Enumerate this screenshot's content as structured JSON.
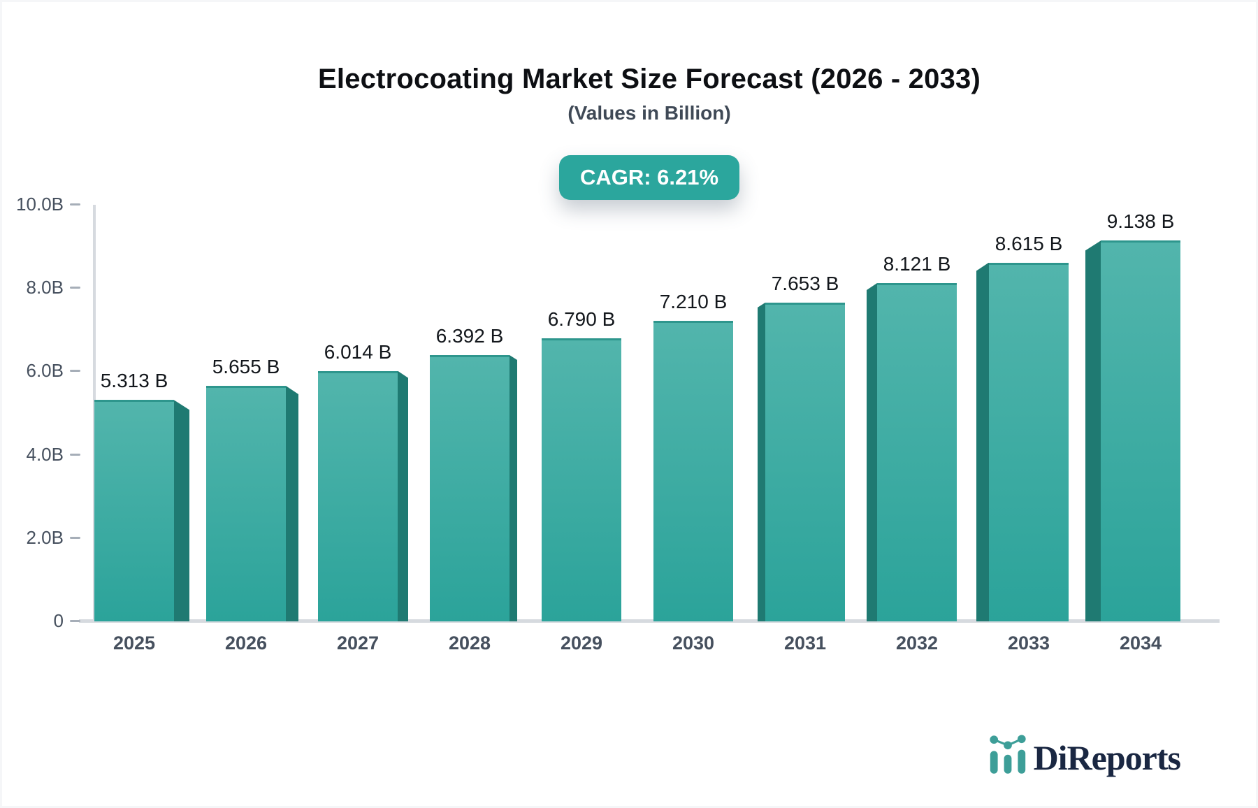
{
  "chart_data": {
    "type": "bar",
    "title": "Electrocoating Market Size Forecast (2026 - 2033)",
    "subtitle": "(Values in Billion)",
    "cagr_label": "CAGR: 6.21%",
    "categories": [
      "2025",
      "2026",
      "2027",
      "2028",
      "2029",
      "2030",
      "2031",
      "2032",
      "2033",
      "2034"
    ],
    "values": [
      5.313,
      5.655,
      6.014,
      6.392,
      6.79,
      7.21,
      7.653,
      8.121,
      8.615,
      9.138
    ],
    "value_labels": [
      "5.313 B",
      "5.655 B",
      "6.014 B",
      "6.392 B",
      "6.790 B",
      "7.210 B",
      "7.653 B",
      "8.121 B",
      "8.615 B",
      "9.138 B"
    ],
    "y_ticks": [
      {
        "label": "10.0B",
        "value": 10
      },
      {
        "label": "8.0B",
        "value": 8
      },
      {
        "label": "6.0B",
        "value": 6
      },
      {
        "label": "4.0B",
        "value": 4
      },
      {
        "label": "2.0B",
        "value": 2
      },
      {
        "label": "0",
        "value": 0
      }
    ],
    "ylim": [
      0,
      10
    ],
    "xlabel": "",
    "ylabel": "",
    "grid": "off",
    "legend": "none",
    "bar_style": "3d-perspective-teal"
  },
  "logo": {
    "text": "DiReports",
    "icon": "bar-chart-logo-icon"
  },
  "colors": {
    "page_bg": "#F5F6F8",
    "card_bg": "#FFFFFF",
    "title": "#0D0F13",
    "subtitle": "#3F4956",
    "badge_bg": "#2BA69D",
    "badge_text": "#FFFFFF",
    "bar_face_top": "#52B5AC",
    "bar_face_bottom": "#2BA39A",
    "bar_edge": "#2E968D",
    "bar_side": "#1F7A72",
    "axis_line": "#D6DADF",
    "tick": "#A6AEB8",
    "axis_label": "#46505E",
    "value_label": "#13171C",
    "logo_teal": "#3D9E98",
    "logo_navy": "#1A2742"
  }
}
